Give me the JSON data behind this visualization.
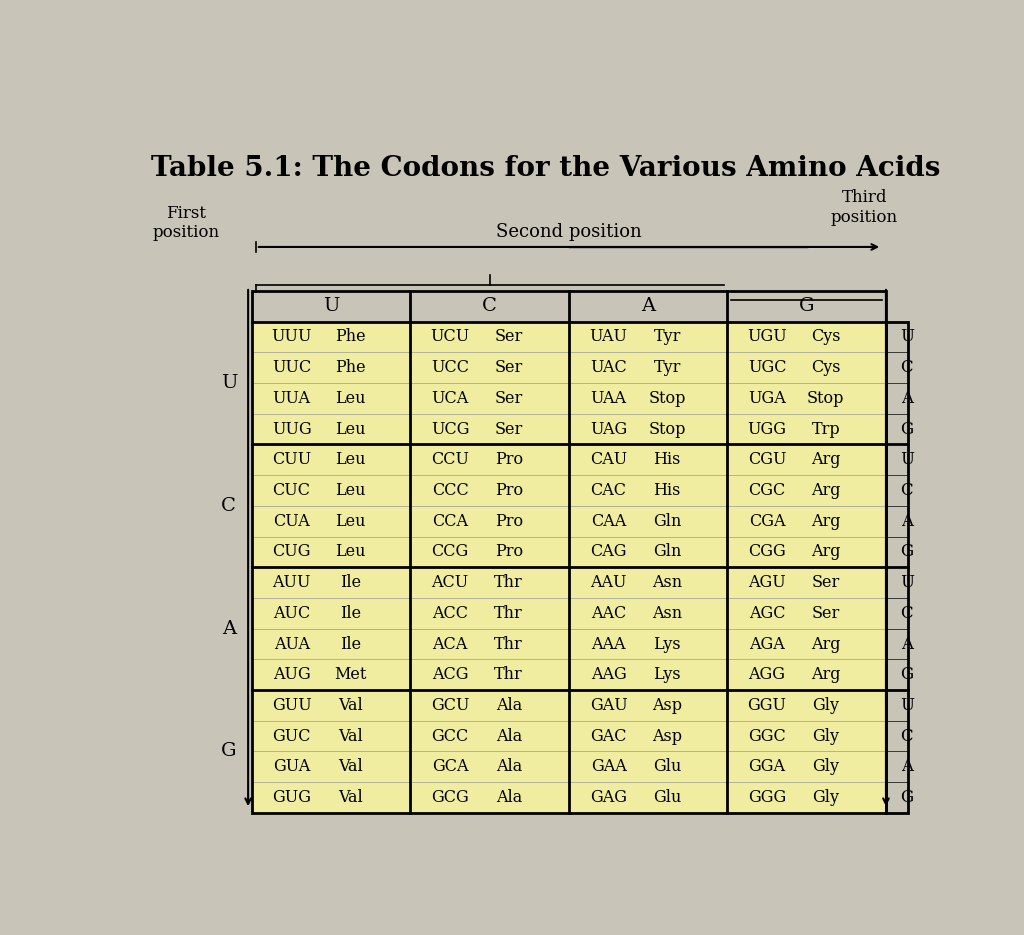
{
  "title": "Table 5.1: The Codons for the Various Amino Acids",
  "title_fontsize": 20,
  "page_bg": "#c8c4b8",
  "cell_bg": "#f0eda0",
  "header_area_bg": "#e8e4d0",
  "first_position_label": "First\nposition",
  "second_position_label": "Second position",
  "third_position_label": "Third\nposition",
  "col_headers": [
    "U",
    "C",
    "A",
    "G"
  ],
  "row_headers": [
    "U",
    "C",
    "A",
    "G"
  ],
  "third_labels": [
    [
      "U",
      "C",
      "A",
      "G"
    ],
    [
      "U",
      "C",
      "A",
      "G"
    ],
    [
      "U",
      "C",
      "A",
      "G"
    ],
    [
      "U",
      "C",
      "A",
      "G"
    ]
  ],
  "cells": [
    [
      [
        "UUU Phe",
        "UUC Phe",
        "UUA Leu",
        "UUG Leu"
      ],
      [
        "UCU Ser",
        "UCC Ser",
        "UCA Ser",
        "UCG Ser"
      ],
      [
        "UAU Tyr",
        "UAC Tyr",
        "UAA Stop",
        "UAG Stop"
      ],
      [
        "UGU Cys",
        "UGC Cys",
        "UGA Stop",
        "UGG Trp"
      ]
    ],
    [
      [
        "CUU Leu",
        "CUC Leu",
        "CUA Leu",
        "CUG Leu"
      ],
      [
        "CCU Pro",
        "CCC Pro",
        "CCA Pro",
        "CCG Pro"
      ],
      [
        "CAU His",
        "CAC His",
        "CAA Gln",
        "CAG Gln"
      ],
      [
        "CGU Arg",
        "CGC Arg",
        "CGA Arg",
        "CGG Arg"
      ]
    ],
    [
      [
        "AUU Ile",
        "AUC Ile",
        "AUA Ile",
        "AUG Met"
      ],
      [
        "ACU Thr",
        "ACC Thr",
        "ACA Thr",
        "ACG Thr"
      ],
      [
        "AAU Asn",
        "AAC Asn",
        "AAA Lys",
        "AAG Lys"
      ],
      [
        "AGU Ser",
        "AGC Ser",
        "AGA Arg",
        "AGG Arg"
      ]
    ],
    [
      [
        "GUU Val",
        "GUC Val",
        "GUA Val",
        "GUG Val"
      ],
      [
        "GCU Ala",
        "GCC Ala",
        "GCA Ala",
        "GCG Ala"
      ],
      [
        "GAU Asp",
        "GAC Asp",
        "GAA Glu",
        "GAG Glu"
      ],
      [
        "GGU Gly",
        "GGC Gly",
        "GGA Gly",
        "GGG Gly"
      ]
    ]
  ]
}
